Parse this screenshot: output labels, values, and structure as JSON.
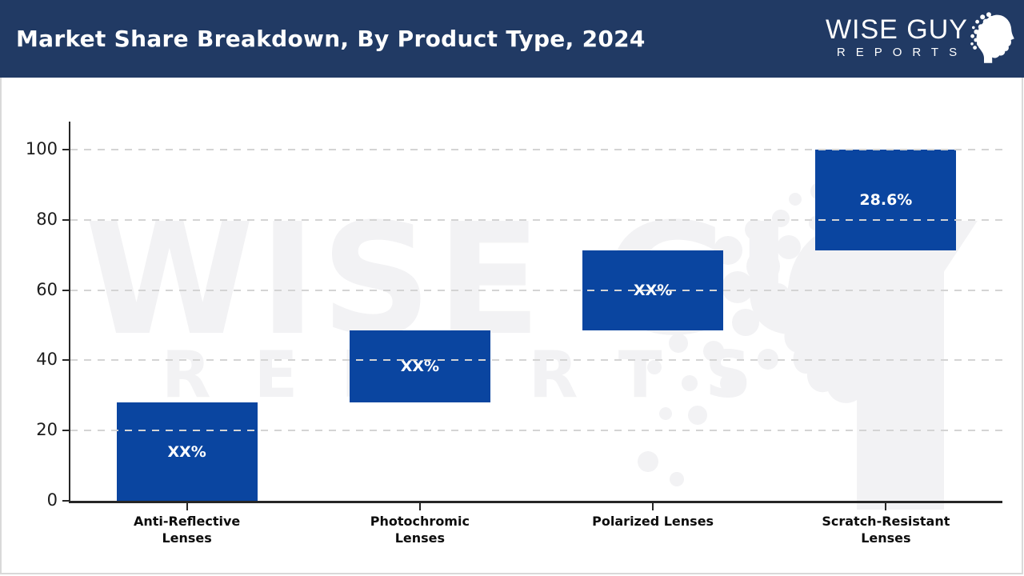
{
  "brand": {
    "wordmark": "WISE GUY",
    "subtext": "REPORTS"
  },
  "header": {
    "title": "Market Share Breakdown, By Product Type, 2024",
    "background_color": "#213a64",
    "text_color": "#ffffff"
  },
  "watermark": {
    "wordmark": "WISE GUY",
    "subtext": "REPORTS",
    "color": "#f2f2f4",
    "head_icon": "wiseguy-head-dots"
  },
  "chart_data": {
    "type": "bar",
    "variant": "waterfall",
    "title": "Market Share Breakdown, By Product Type, 2024",
    "categories": [
      "Anti-Reflective Lenses",
      "Photochromic Lenses",
      "Polarized Lenses",
      "Scratch-Resistant Lenses"
    ],
    "category_lines": [
      [
        "Anti-Reflective",
        "Lenses"
      ],
      [
        "Photochromic",
        "Lenses"
      ],
      [
        "Polarized Lenses"
      ],
      [
        "Scratch-Resistant",
        "Lenses"
      ]
    ],
    "segments": [
      {
        "category": "Anti-Reflective Lenses",
        "start": 0,
        "end": 28.0,
        "value": 28.0,
        "label": "XX%"
      },
      {
        "category": "Photochromic Lenses",
        "start": 28.0,
        "end": 48.6,
        "value": 20.6,
        "label": "XX%"
      },
      {
        "category": "Polarized Lenses",
        "start": 48.6,
        "end": 71.4,
        "value": 22.8,
        "label": "XX%"
      },
      {
        "category": "Scratch-Resistant Lenses",
        "start": 71.4,
        "end": 100,
        "value": 28.6,
        "label": "28.6%"
      }
    ],
    "xlabel": "",
    "ylabel": "",
    "ylim": [
      0,
      100
    ],
    "yticks": [
      0,
      20,
      40,
      60,
      80,
      100
    ],
    "grid": {
      "axis": "y",
      "style": "dashed",
      "color": "#d4d4d4"
    },
    "legend": false,
    "bar_color": "#0a45a0",
    "bar_label_color": "#ffffff",
    "axis_color": "#262626"
  }
}
